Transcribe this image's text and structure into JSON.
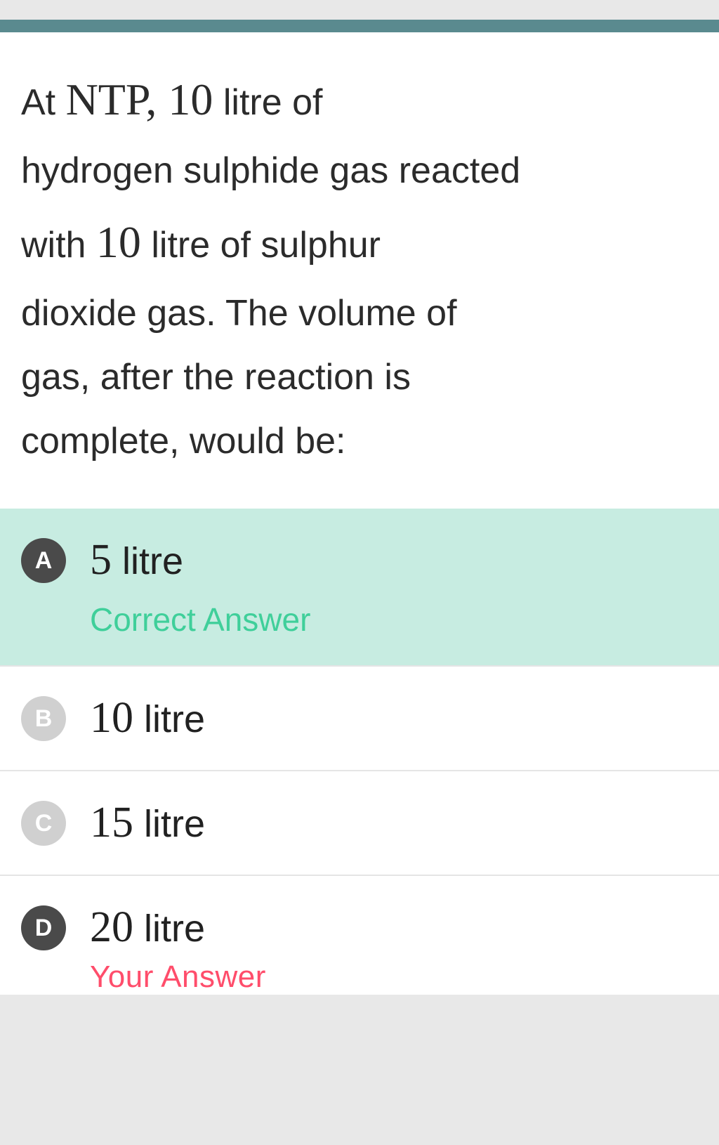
{
  "question": {
    "line1_pre": "At ",
    "line1_ntp": "NTP, 10",
    "line1_post": " litre of",
    "line2": "hydrogen sulphide gas reacted",
    "line3_pre": "with ",
    "line3_num": "10",
    "line3_post": " litre of sulphur",
    "line4": "dioxide gas. The volume of",
    "line5": "gas, after the reaction is",
    "line6": "complete, would be:"
  },
  "options": {
    "a": {
      "letter": "A",
      "num": "5",
      "unit": " litre",
      "correct_label": "Correct Answer"
    },
    "b": {
      "letter": "B",
      "num": "10",
      "unit": " litre"
    },
    "c": {
      "letter": "C",
      "num": "15",
      "unit": " litre"
    },
    "d": {
      "letter": "D",
      "num": "20",
      "unit": " litre",
      "your_answer_partial": "Your Answer"
    }
  },
  "colors": {
    "topbar": "#5a8a8f",
    "correct_bg": "#c7ece1",
    "correct_text": "#3fcf9a",
    "badge_selected": "#4a4a4a",
    "badge_unselected": "#d0d0d0",
    "your_answer": "#ff4d6b"
  }
}
